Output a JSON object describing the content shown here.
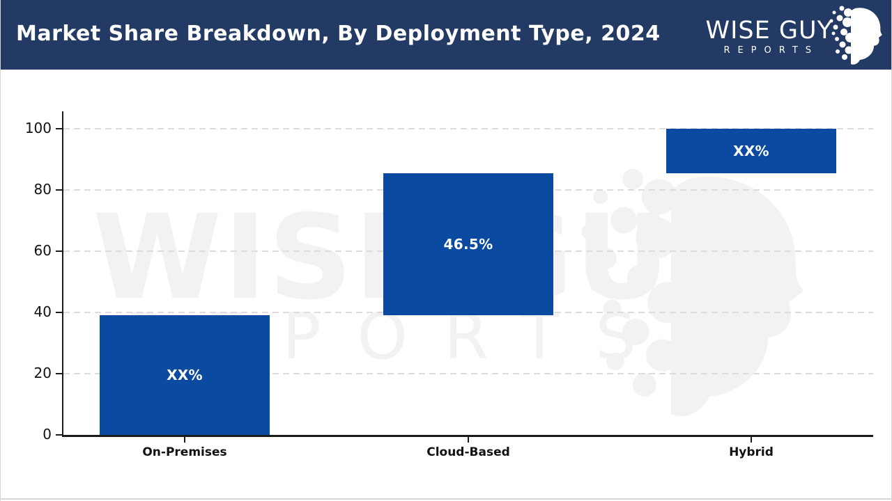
{
  "header": {
    "title": "Market Share Breakdown, By Deployment Type, 2024",
    "logo": {
      "name_top": "WISE GUY",
      "name_bottom": "REPORTS"
    }
  },
  "watermark": {
    "row1": "WISE GUY",
    "row2": "REPORTS"
  },
  "chart_data": {
    "type": "bar",
    "subtype": "floating-segment-percentage",
    "title": "Market Share Breakdown, By Deployment Type, 2024",
    "categories": [
      "On-Premises",
      "Cloud-Based",
      "Hybrid"
    ],
    "series": [
      {
        "name": "On-Premises",
        "start": 0,
        "end": 39,
        "value": 39,
        "label": "XX%"
      },
      {
        "name": "Cloud-Based",
        "start": 39,
        "end": 85.5,
        "value": 46.5,
        "label": "46.5%"
      },
      {
        "name": "Hybrid",
        "start": 85.5,
        "end": 100,
        "value": 14.5,
        "label": "XX%"
      }
    ],
    "xlabel": "",
    "ylabel": "",
    "ylim": [
      0,
      100
    ],
    "yticks": [
      0,
      20,
      40,
      60,
      80,
      100
    ],
    "grid": "dashed-horizontal",
    "legend": "none",
    "bar_color": "#0A4AA0",
    "bar_label_color": "#ffffff",
    "axis_color": "#1a1a1a",
    "grid_color": "#dcdcdc",
    "header_color": "#233A64",
    "watermark_color": "#f2f2f4"
  }
}
